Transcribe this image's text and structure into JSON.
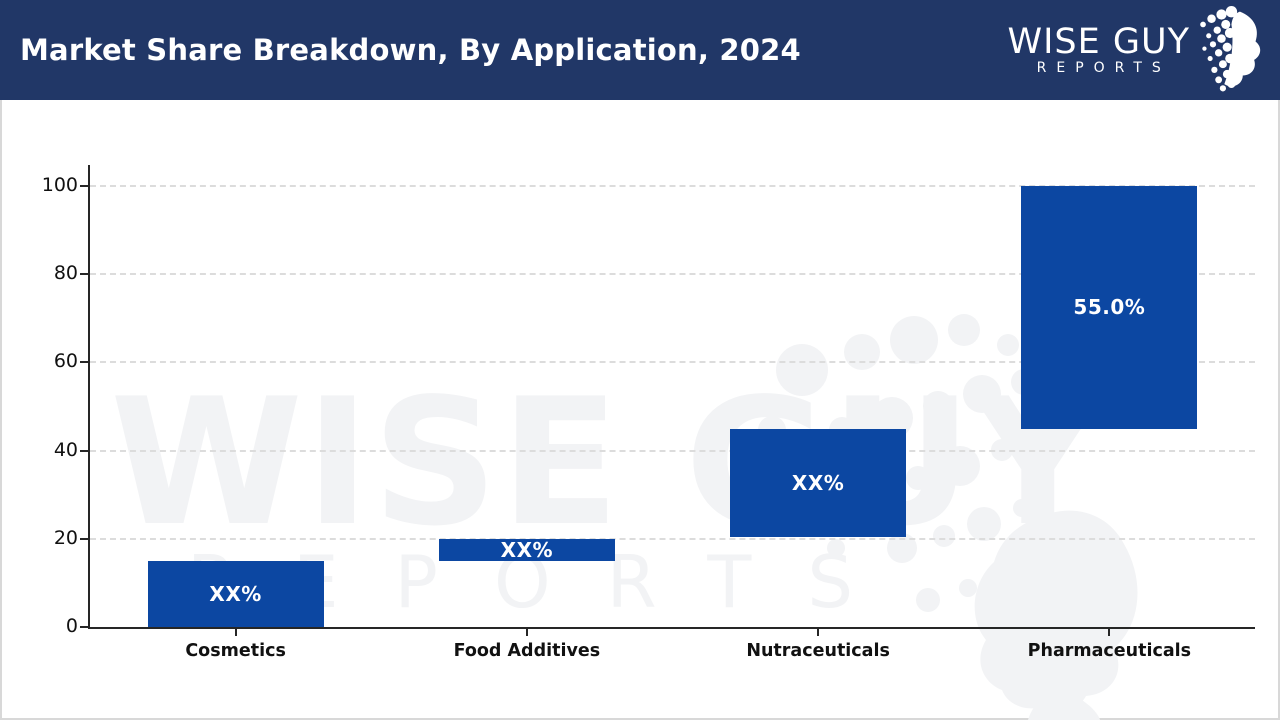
{
  "header": {
    "title": "Market Share Breakdown, By Application, 2024",
    "logo": {
      "line1": "WISE GUY",
      "line2": "REPORTS"
    }
  },
  "watermark": {
    "line1": "WISE GUY",
    "line2": "REPORTS"
  },
  "chart_data": {
    "type": "bar",
    "subtype": "floating-waterfall",
    "title": "Market Share Breakdown, By Application, 2024",
    "categories": [
      "Cosmetics",
      "Food Additives",
      "Nutraceuticals",
      "Pharmaceuticals"
    ],
    "segments": [
      {
        "category": "Cosmetics",
        "start": 0,
        "end": 15,
        "label": "XX%"
      },
      {
        "category": "Food Additives",
        "start": 15,
        "end": 20,
        "label": "XX%"
      },
      {
        "category": "Nutraceuticals",
        "start": 20.5,
        "end": 45,
        "label": "XX%"
      },
      {
        "category": "Pharmaceuticals",
        "start": 45,
        "end": 100,
        "label": "55.0%"
      }
    ],
    "yticks": [
      0,
      20,
      40,
      60,
      80,
      100
    ],
    "ylim": [
      0,
      105
    ],
    "xlabel": "",
    "ylabel": "",
    "grid": "horizontal-dashed",
    "legend": "none"
  },
  "colors": {
    "header_bg": "#213767",
    "bar": "#0c47a2",
    "bar_label": "#ffffff",
    "grid": "#dcdcdc",
    "axis": "#262626",
    "watermark": "#f2f3f5",
    "page_border": "#d8d8d8"
  }
}
